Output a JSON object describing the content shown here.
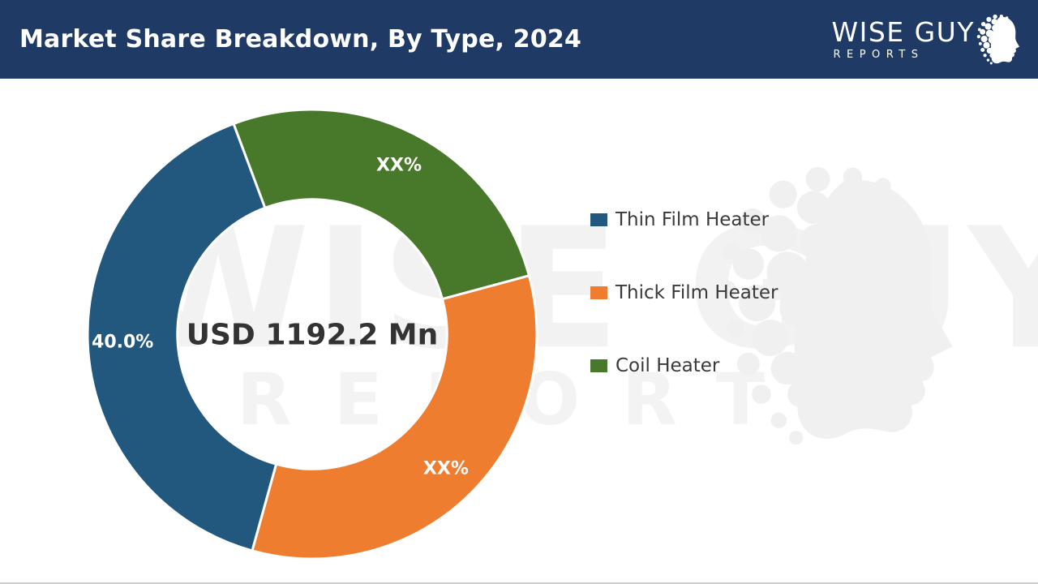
{
  "header": {
    "title": "Market Share Breakdown, By Type, 2024",
    "bg_color": "#203a66",
    "logo": {
      "line1": "WISE GUY",
      "line2": "REPORTS",
      "icon": "dotted-head-profile"
    }
  },
  "watermark": {
    "line1": "WISE GUY",
    "line2": "REPORTS",
    "icon": "dotted-head-profile",
    "color": "#f2f2f2"
  },
  "colors": {
    "header_bg": "#203a66",
    "title_text": "#ffffff",
    "center_text": "#333333",
    "legend_text": "#3a3a3a",
    "slice_separator": "#ffffff",
    "footer_line": "#cfcfcf"
  },
  "chart_data": {
    "type": "pie",
    "subtype": "donut",
    "title": "Market Share Breakdown, By Type, 2024",
    "center_label": "USD 1192.2 Mn",
    "start_angle_deg": 110.5,
    "direction": "counterclockwise",
    "inner_radius_ratio": 0.6,
    "legend_position": "right",
    "grid": false,
    "slices": [
      {
        "label": "Thin Film Heater",
        "display_pct": "40.0%",
        "value_pct_est": 40.0,
        "color": "#22587e"
      },
      {
        "label": "Thick Film Heater",
        "display_pct": "XX%",
        "value_pct_est": 33.5,
        "color": "#ee7d30"
      },
      {
        "label": "Coil Heater",
        "display_pct": "XX%",
        "value_pct_est": 26.5,
        "color": "#48792a"
      }
    ]
  }
}
